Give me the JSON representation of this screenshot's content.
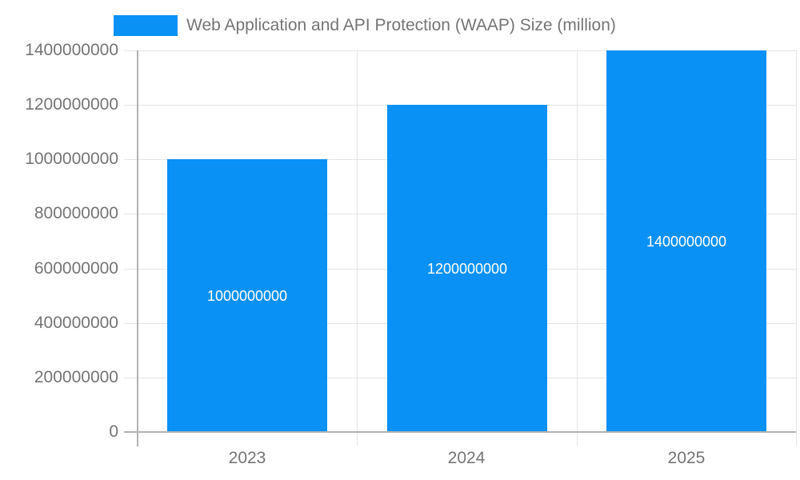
{
  "chart_data": {
    "type": "bar",
    "title": "Web Application and API Protection (WAAP) Size (million)",
    "categories": [
      "2023",
      "2024",
      "2025"
    ],
    "series": [
      {
        "name": "Web Application and API Protection (WAAP) Size (million)",
        "values": [
          1000000000,
          1200000000,
          1400000000
        ]
      }
    ],
    "bar_value_labels": [
      "1000000000",
      "1200000000",
      "1400000000"
    ],
    "xlabel": "",
    "ylabel": "",
    "ylim": [
      0,
      1400000000
    ],
    "y_ticks": [
      0,
      200000000,
      400000000,
      600000000,
      800000000,
      1000000000,
      1200000000,
      1400000000
    ],
    "y_tick_labels": [
      "0",
      "200000000",
      "400000000",
      "600000000",
      "800000000",
      "1000000000",
      "1200000000",
      "1400000000"
    ],
    "grid": true,
    "legend_position": "top",
    "colors": {
      "bar": "#0991f5",
      "axis_text": "#757575",
      "bar_label_text": "#ffffff",
      "axis_line": "#b2b2b2",
      "gridline": "#e4e4e4",
      "background": "#ffffff"
    }
  }
}
